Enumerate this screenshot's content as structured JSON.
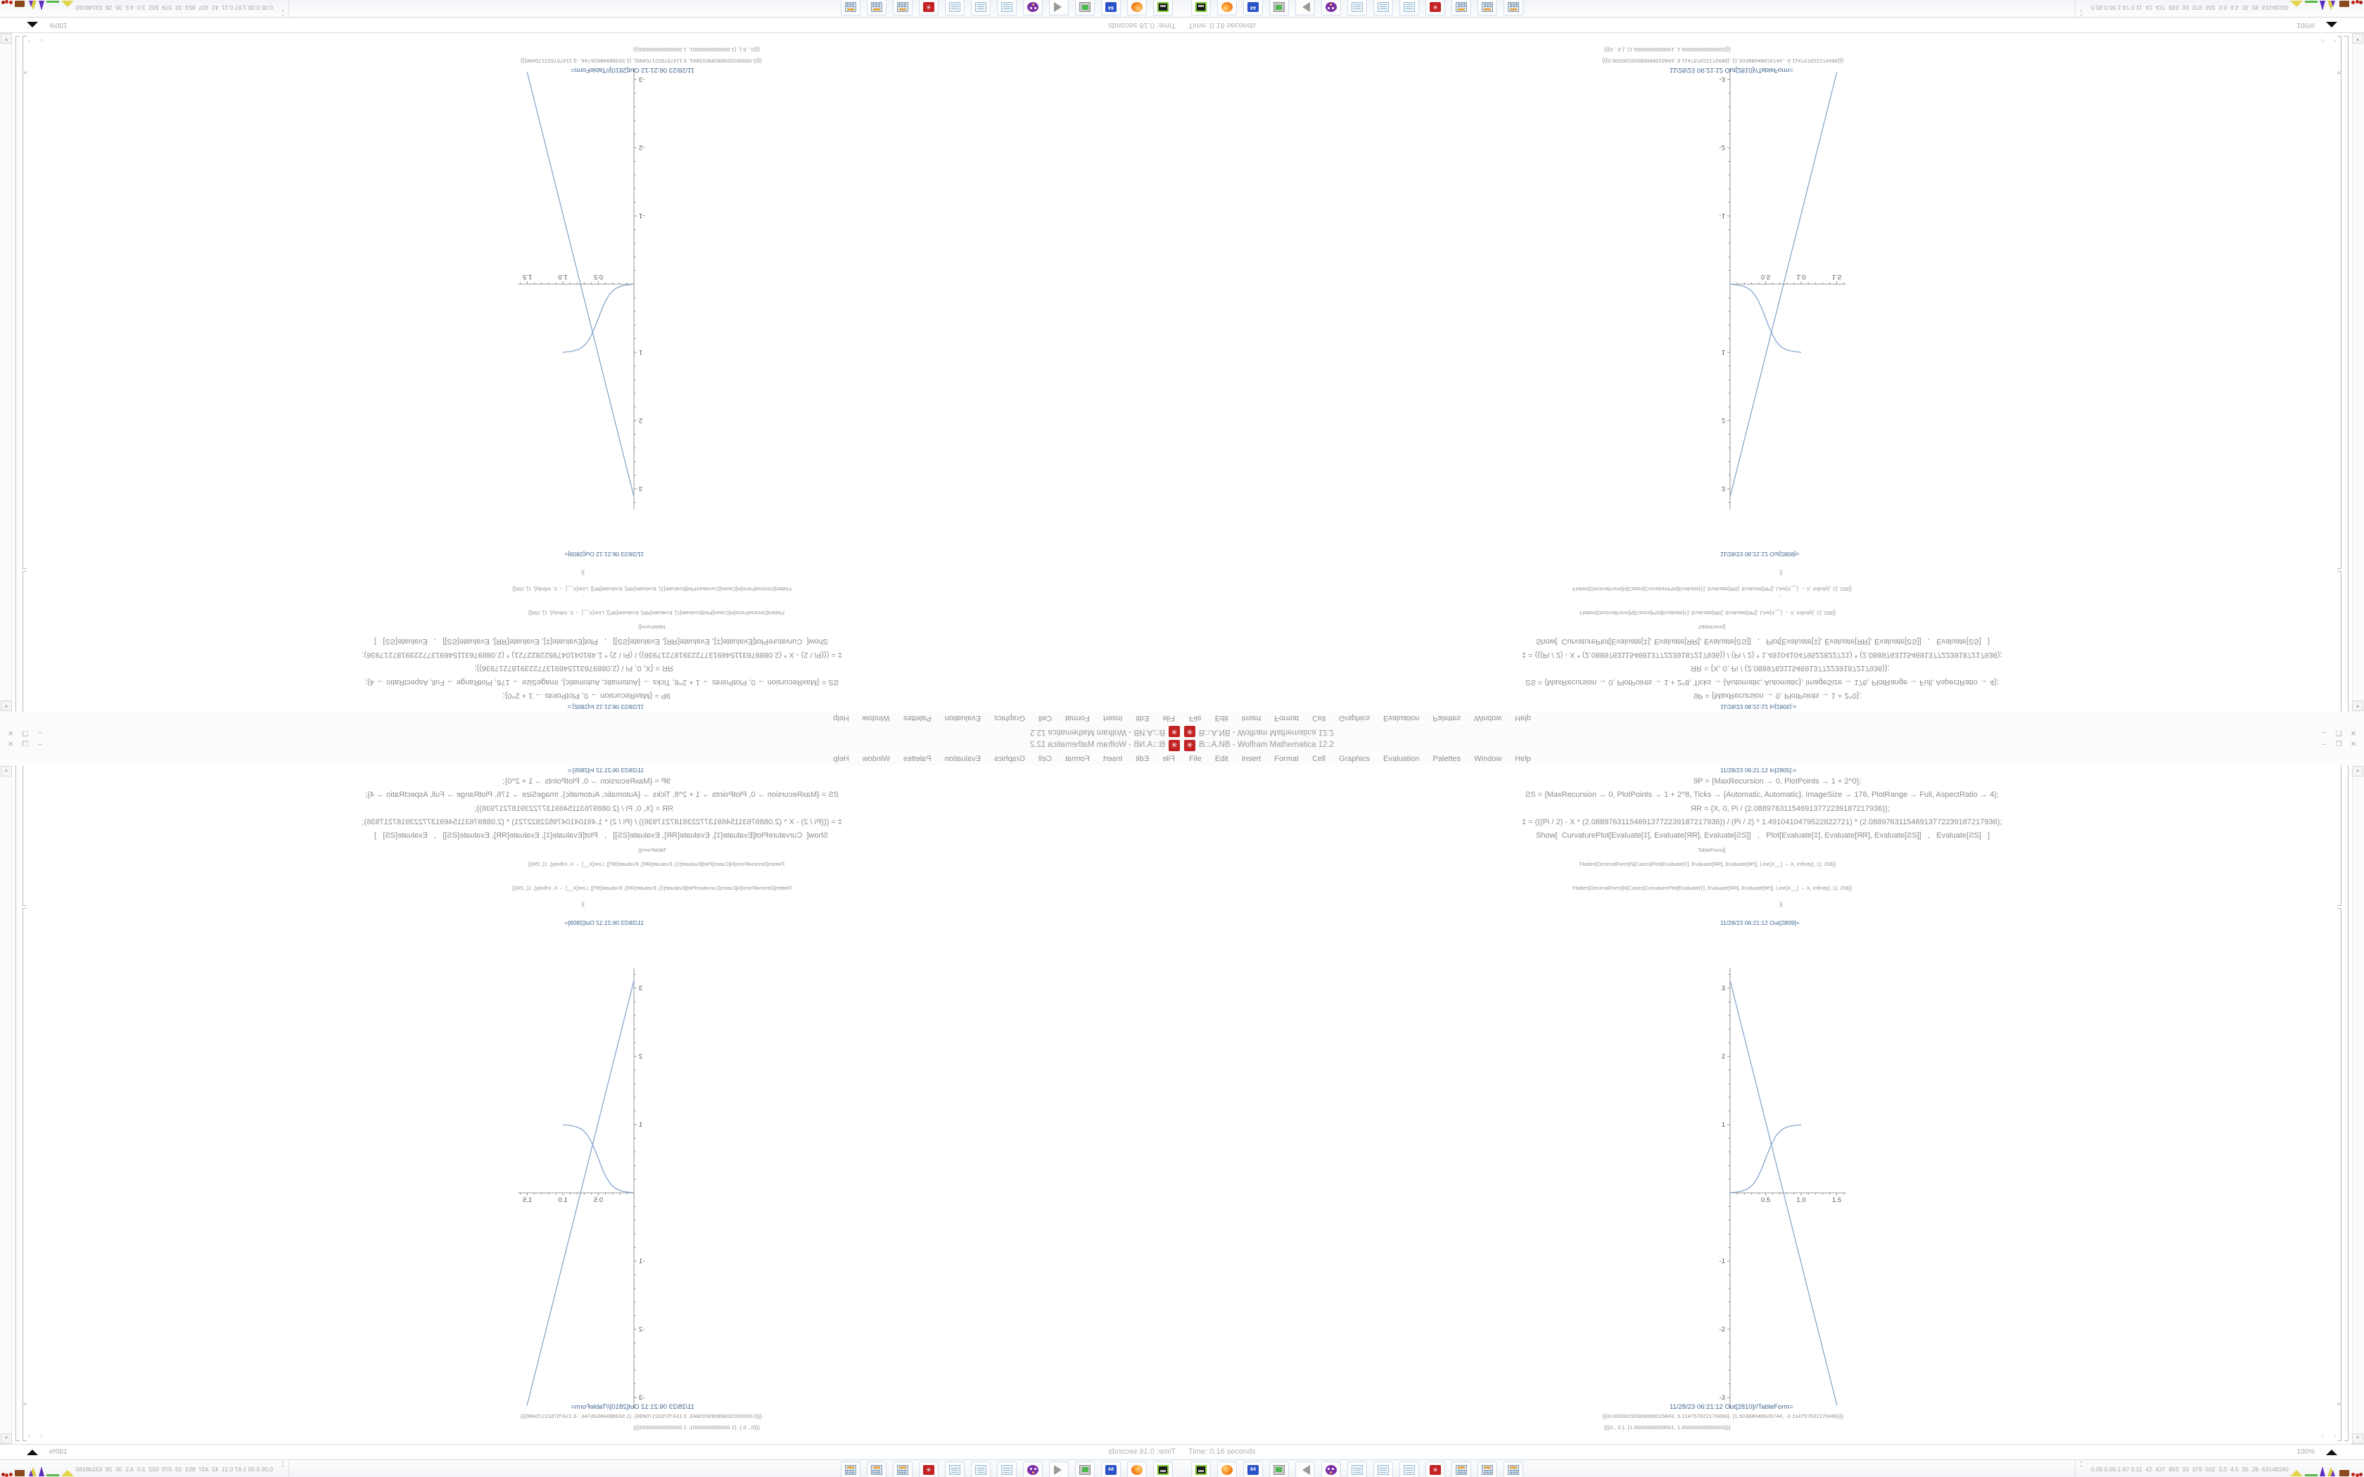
{
  "window": {
    "title": "B□.A.NB - Wolfram Mathematica 12.2",
    "app_icon": "✳",
    "menu": [
      "File",
      "Edit",
      "Insert",
      "Format",
      "Cell",
      "Graphics",
      "Evaluation",
      "Palettes",
      "Window",
      "Help"
    ],
    "buttons": {
      "minimize": "–",
      "restore": "❐",
      "close": "✕"
    }
  },
  "notebook": {
    "in_label": "11/28/23 06:21:12 In[2805]:=",
    "out_label": "11/28/23 06:21:12 Out[2809]=",
    "tableform_label": "11/28/23 06:21:12 Out[2810]//TableForm=",
    "code_lines": [
      "9P = {MaxRecursion → 0, PlotPoints → 1 + 2^0};",
      "ƧS = {MaxRecursion → 0, PlotPoints → 1 + 2^8, Ticks → {Automatic, Automatic}, ImageSize → 176, PlotRange → Full, AspectRatio → 4};",
      "ЯR = {X, 0, Pi / (2.088976311546913772239187217936)};",
      "‡ = (((Pi / 2) - X * (2.088976311546913772239187217936)) / (Pi / 2) * 1.4910410479522822721) * (2.088976311546913772239187217936);",
      "Show[  CurvaturePlot[Evaluate[‡], Evaluate[ЯR], Evaluate[ƧS]]   ,   Plot[Evaluate[‡], Evaluate[ЯR], Evaluate[ƧS]]   ,   Evaluate[ƧS]   ]",
      "TableForm[{",
      "Flatten[DecimalForm[N[Cases[Plot[Evaluate[‡], Evaluate[ЯR], Evaluate[9P]], Line[X__] → X, Infinity], 1], 256]]",
      ",",
      "Flatten[DecimalForm[N[Cases[CurvaturePlot[Evaluate[‡], Evaluate[ЯR], Evaluate[9P]], Line[X__] → X, Infinity], 1], 256]]",
      "}]"
    ],
    "tableform_rows": [
      "{{{0.00000150389099015843, 3.114757622170496}, {1.50388948626744, -3.114757622170496}}}",
      "{{{0., 0.}, {1.0000000000001, 1.00000000000003}}}"
    ]
  },
  "chart_data": {
    "type": "line",
    "title": "",
    "xlabel": "",
    "ylabel": "",
    "xlim": [
      0,
      1.63
    ],
    "ylim": [
      -3.45,
      3.3
    ],
    "grid": false,
    "legend": null,
    "xticks": [
      "0.5",
      "1.0",
      "1.5"
    ],
    "yticks_pos": [
      "3",
      "2",
      "1"
    ],
    "yticks_neg": [
      "-1",
      "-2",
      "-3"
    ],
    "line_color": "#7d9fc9",
    "series": [
      {
        "name": "linear-ramp",
        "points": [
          [
            1.5038909902e-06,
            3.114757622170496
          ],
          [
            1.50388948626744,
            -3.114757622170496
          ]
        ]
      },
      {
        "name": "curvature-sigmoid",
        "points": [
          [
            0,
            0
          ],
          [
            0.05,
            0.007
          ],
          [
            0.1,
            0.012
          ],
          [
            0.15,
            0.021
          ],
          [
            0.2,
            0.036
          ],
          [
            0.25,
            0.06
          ],
          [
            0.3,
            0.099
          ],
          [
            0.35,
            0.159
          ],
          [
            0.4,
            0.25
          ],
          [
            0.45,
            0.365
          ],
          [
            0.5,
            0.5
          ],
          [
            0.55,
            0.634
          ],
          [
            0.6,
            0.75
          ],
          [
            0.65,
            0.841
          ],
          [
            0.7,
            0.901
          ],
          [
            0.75,
            0.94
          ],
          [
            0.8,
            0.964
          ],
          [
            0.85,
            0.979
          ],
          [
            0.9,
            0.988
          ],
          [
            0.95,
            0.993
          ],
          [
            1.0,
            1.0
          ]
        ]
      }
    ]
  },
  "statusbar": {
    "time_text": "Time: 0.16 seconds",
    "zoom_text": "100%"
  },
  "taskbar": {
    "quicklaunch": [
      "eject-utility",
      "firefox",
      "floppy-64",
      "computer",
      "volume",
      "purple-app",
      "notes",
      "notes",
      "notes",
      "mathematica",
      "calculator",
      "calculator",
      "calculator"
    ],
    "floppy_label": "64",
    "mathematica_glyph": "✳",
    "tray_expander": "⌃⌃",
    "tray_text": "0.05 0.00 1.67 0.11  42  437  853  33  379  502  3.0  4.5  35  28  63148160",
    "tray_graphs": [
      "yellow-mound",
      "green-line",
      "purple-spike",
      "spike-cluster",
      "brown-box",
      "red-berries"
    ]
  }
}
